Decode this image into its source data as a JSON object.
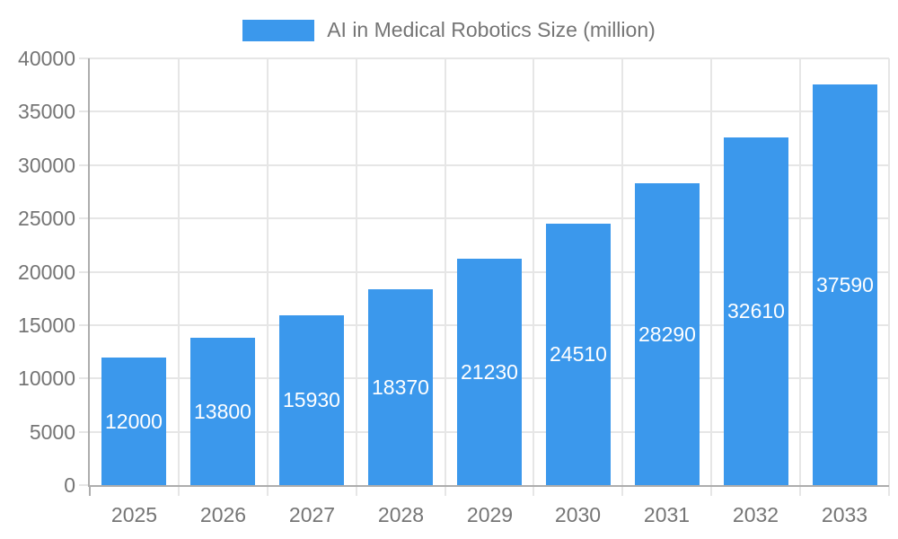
{
  "legend": {
    "label": "AI in Medical Robotics Size (million)"
  },
  "chart_data": {
    "type": "bar",
    "title": "AI in Medical Robotics Size (million)",
    "series_name": "AI in Medical Robotics Size (million)",
    "categories": [
      "2025",
      "2026",
      "2027",
      "2028",
      "2029",
      "2030",
      "2031",
      "2032",
      "2033"
    ],
    "values": [
      12000,
      13800,
      15930,
      18370,
      21230,
      24510,
      28290,
      32610,
      37590
    ],
    "value_labels": [
      "12000",
      "13800",
      "15930",
      "18370",
      "21230",
      "24510",
      "28290",
      "32610",
      "37590"
    ],
    "xlabel": "",
    "ylabel": "",
    "ylim": [
      0,
      40000
    ],
    "ytick_step": 5000,
    "ytick_labels": [
      "0",
      "5000",
      "10000",
      "15000",
      "20000",
      "25000",
      "30000",
      "35000",
      "40000"
    ],
    "grid": true,
    "legend_position": "top",
    "colors": {
      "bar": "#3b98ec",
      "axis_text": "#757575",
      "value_text": "#ffffff",
      "gridline": "#e6e6e6",
      "axis_line": "#adadad",
      "background": "#ffffff"
    }
  }
}
